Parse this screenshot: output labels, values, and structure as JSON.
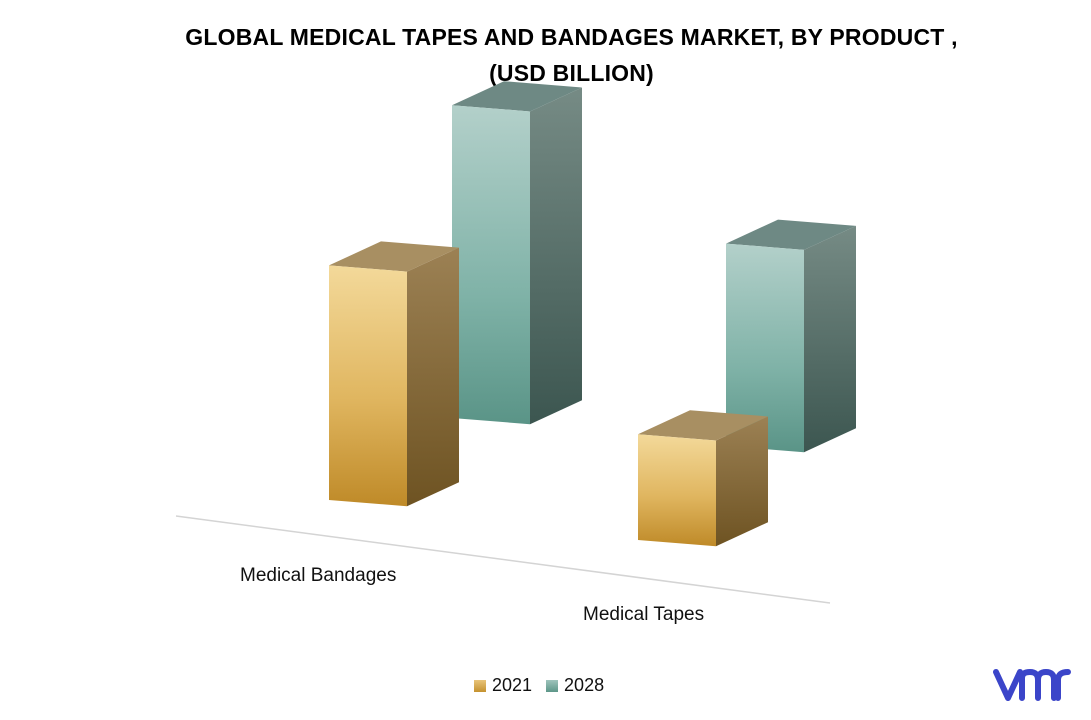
{
  "chart_data": {
    "type": "bar",
    "title": "GLOBAL MEDICAL TAPES AND BANDAGES MARKET, BY PRODUCT ,",
    "subtitle": "(USD BILLION)",
    "categories": [
      "Medical Bandages",
      "Medical Tapes"
    ],
    "series": [
      {
        "name": "2021",
        "values": [
          5.1,
          2.3
        ],
        "color": "#d9a84a"
      },
      {
        "name": "2028",
        "values": [
          6.8,
          4.4
        ],
        "color": "#6ea79c"
      }
    ],
    "ylim": [
      0,
      7.5
    ],
    "grid": false,
    "legend_position": "bottom",
    "style": "3d-column"
  },
  "brand": {
    "logo_color": "#3b45c9"
  }
}
